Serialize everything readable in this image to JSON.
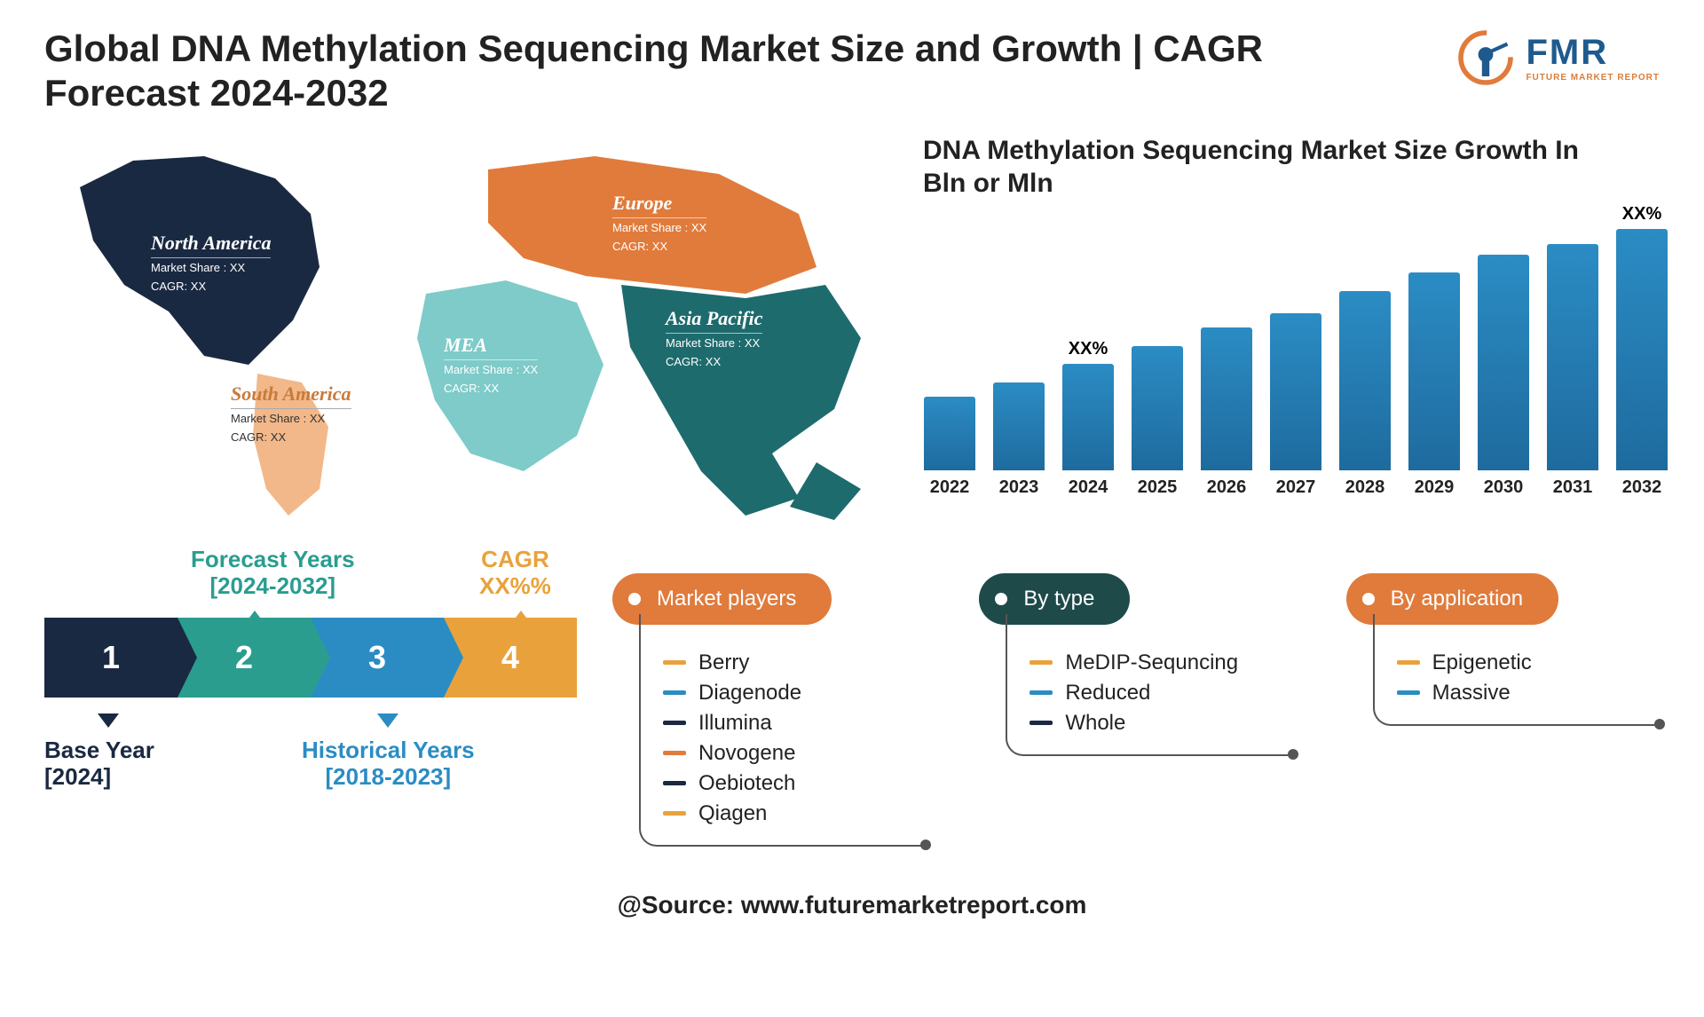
{
  "title": "Global DNA Methylation Sequencing  Market Size and Growth | CAGR Forecast 2024-2032",
  "logo": {
    "fmr": "FMR",
    "sub": "FUTURE MARKET REPORT"
  },
  "map": {
    "regions": [
      {
        "name": "North America",
        "share": "Market Share : XX",
        "cagr": "CAGR: XX",
        "color": "#1a2942"
      },
      {
        "name": "South America",
        "share": "Market Share : XX",
        "cagr": "CAGR: XX",
        "color": "#f2b88a"
      },
      {
        "name": "Europe",
        "share": "Market Share : XX",
        "cagr": "CAGR: XX",
        "color": "#e07b3c"
      },
      {
        "name": "MEA",
        "share": "Market Share : XX",
        "cagr": "CAGR: XX",
        "color": "#7ecbc9"
      },
      {
        "name": "Asia Pacific",
        "share": "Market Share : XX",
        "cagr": "CAGR: XX",
        "color": "#1e6b6e"
      }
    ]
  },
  "bar_chart": {
    "title": "DNA Methylation Sequencing  Market Size Growth In",
    "subtitle": "Bln or Mln",
    "type": "bar",
    "years": [
      "2022",
      "2023",
      "2024",
      "2025",
      "2026",
      "2027",
      "2028",
      "2029",
      "2030",
      "2031",
      "2032"
    ],
    "values": [
      100,
      120,
      145,
      170,
      195,
      215,
      245,
      270,
      295,
      310,
      330
    ],
    "max": 340,
    "bar_color_a": "#2b8cc4",
    "bar_color_b": "#1e6b9e",
    "annotations": [
      {
        "index": 2,
        "text": "XX%"
      },
      {
        "index": 10,
        "text": "XX%"
      }
    ],
    "label_fontsize": 20
  },
  "timeline": {
    "forecast_label": "Forecast Years",
    "forecast_range": "[2024-2032]",
    "forecast_color": "#2a9d8f",
    "cagr_label": "CAGR",
    "cagr_value": "XX%%",
    "cagr_color": "#e9a23b",
    "base_label": "Base Year",
    "base_range": "[2024]",
    "base_color": "#1a2942",
    "hist_label": "Historical Years",
    "hist_range": "[2018-2023]",
    "hist_color": "#2b8cc4",
    "segments": [
      {
        "num": "1",
        "color": "#1a2942"
      },
      {
        "num": "2",
        "color": "#2a9d8f"
      },
      {
        "num": "3",
        "color": "#2b8cc4"
      },
      {
        "num": "4",
        "color": "#e9a23b"
      }
    ]
  },
  "categories": [
    {
      "header": "Market players",
      "header_color": "#e07b3c",
      "items": [
        {
          "label": "Berry",
          "color": "#e9a23b"
        },
        {
          "label": "Diagenode",
          "color": "#2b8cc4"
        },
        {
          "label": "Illumina",
          "color": "#1a2942"
        },
        {
          "label": "Novogene",
          "color": "#e07b3c"
        },
        {
          "label": "Oebiotech",
          "color": "#1a2942"
        },
        {
          "label": "Qiagen",
          "color": "#e9a23b"
        }
      ]
    },
    {
      "header": "By type",
      "header_color": "#1e4a4a",
      "items": [
        {
          "label": "MeDIP-Sequncing",
          "color": "#e9a23b"
        },
        {
          "label": "Reduced",
          "color": "#2b8cc4"
        },
        {
          "label": "Whole",
          "color": "#1a2942"
        }
      ]
    },
    {
      "header": "By application",
      "header_color": "#e07b3c",
      "items": [
        {
          "label": "Epigenetic",
          "color": "#e9a23b"
        },
        {
          "label": "Massive",
          "color": "#2b8cc4"
        }
      ]
    }
  ],
  "source": "@Source: www.futuremarketreport.com"
}
